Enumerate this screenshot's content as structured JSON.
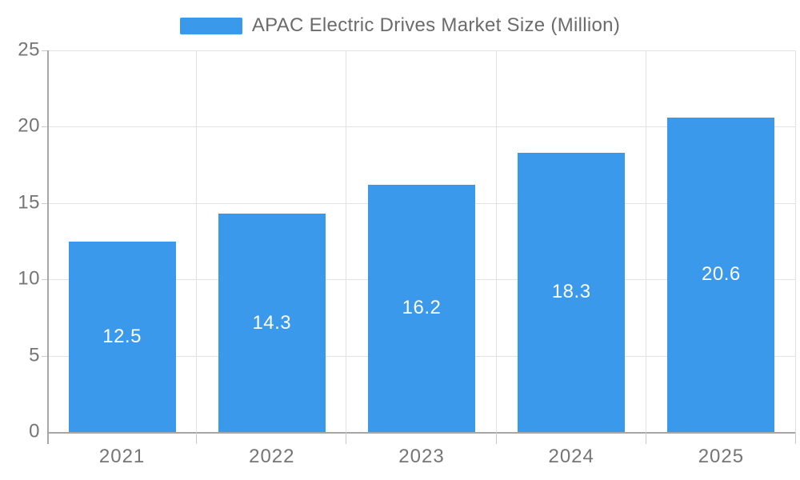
{
  "chart_data": {
    "type": "bar",
    "title": "APAC Electric Drives Market Size (Million)",
    "legend": {
      "position": "top",
      "entries": [
        "APAC Electric Drives Market Size (Million)"
      ]
    },
    "categories": [
      "2021",
      "2022",
      "2023",
      "2024",
      "2025"
    ],
    "values": [
      12.5,
      14.3,
      16.2,
      18.3,
      20.6
    ],
    "data_labels": [
      "12.5",
      "14.3",
      "16.2",
      "18.3",
      "20.6"
    ],
    "xlabel": "",
    "ylabel": "",
    "ylim": [
      0,
      25
    ],
    "yticks": [
      0,
      5,
      10,
      15,
      20,
      25
    ],
    "ytick_labels": [
      "0",
      "5",
      "10",
      "15",
      "20",
      "25"
    ],
    "grid": "horizontal and vertical light gridlines",
    "colors": {
      "bar": "#3b99ec",
      "grid": "#e2e2e2",
      "axis": "#a6a6a6",
      "tick": "#c9c9c9",
      "axis_label": "#757575",
      "title": "#6b6b6b",
      "data_label": "#ffffff",
      "background": "#ffffff"
    }
  }
}
